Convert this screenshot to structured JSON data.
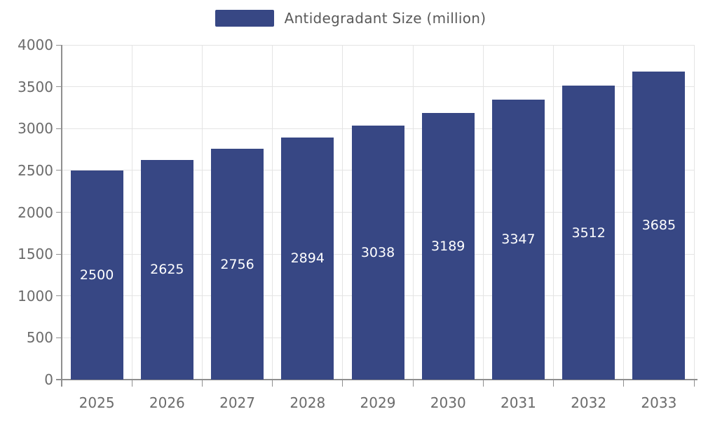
{
  "chart_data": {
    "type": "bar",
    "categories": [
      "2025",
      "2026",
      "2027",
      "2028",
      "2029",
      "2030",
      "2031",
      "2032",
      "2033"
    ],
    "series": [
      {
        "name": "Antidegradant Size (million)",
        "values": [
          2500,
          2625,
          2756,
          2894,
          3038,
          3189,
          3347,
          3512,
          3685
        ]
      }
    ],
    "title": "",
    "xlabel": "",
    "ylabel": "",
    "ylim": [
      0,
      4000
    ],
    "yticks": [
      0,
      500,
      1000,
      1500,
      2000,
      2500,
      3000,
      3500,
      4000
    ],
    "grid": true,
    "legend_position": "top-center",
    "value_labels_inside_bars": true
  },
  "legend": {
    "label": "Antidegradant Size (million)"
  },
  "colors": {
    "bar": "#374784",
    "bar_value_text": "#ffffff",
    "axis_line": "#8f8f8f",
    "gridline": "#e4e4e4",
    "tick_text": "#6b6b6b",
    "legend_text": "#5a5a5a"
  }
}
